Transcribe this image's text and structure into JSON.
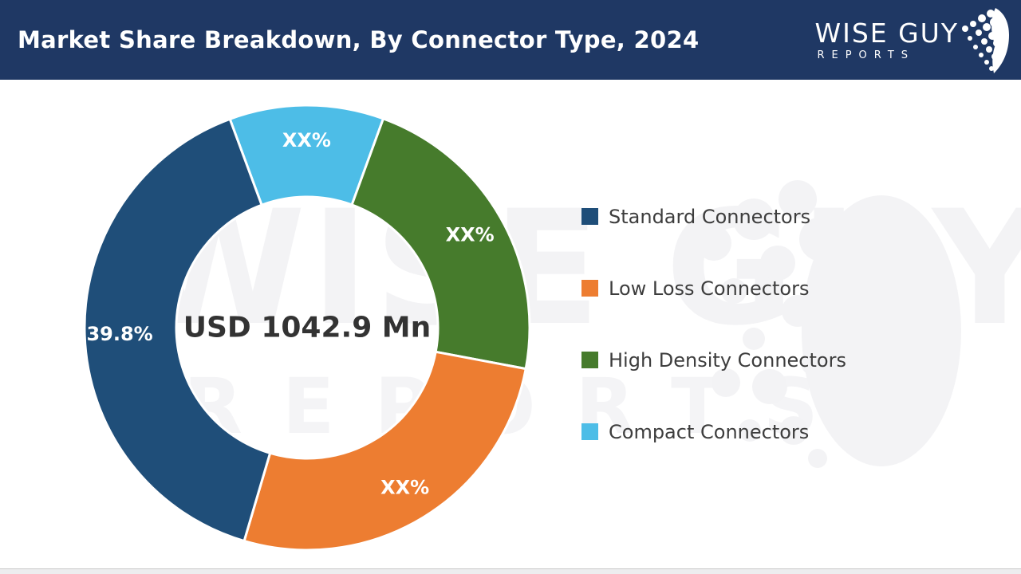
{
  "header": {
    "title": "Market Share Breakdown, By Connector Type, 2024",
    "bg_color": "#1F3864"
  },
  "logo": {
    "line1": "WISE GUY",
    "line2": "REPORTS"
  },
  "watermark": {
    "line1": "WISE GUY",
    "line2": "REPORTS"
  },
  "chart_data": {
    "type": "donut",
    "title": "Market Share Breakdown, By Connector Type, 2024",
    "center_label": "USD 1042.9 Mn",
    "start_angle_deg": -20.3,
    "direction": "clockwise",
    "legend_position": "right",
    "segments": [
      {
        "name": "Compact Connectors",
        "value_pct": 11.2,
        "label": "XX%",
        "color": "#4DBDE7"
      },
      {
        "name": "High Density Connectors",
        "value_pct": 22.4,
        "label": "XX%",
        "color": "#467B2C"
      },
      {
        "name": "Low Loss Connectors",
        "value_pct": 26.6,
        "label": "XX%",
        "color": "#ED7D31"
      },
      {
        "name": "Standard Connectors",
        "value_pct": 39.8,
        "label": "39.8%",
        "color": "#1F4E79"
      }
    ]
  },
  "legend": {
    "items": [
      {
        "label": "Standard Connectors",
        "color": "#1F4E79"
      },
      {
        "label": "Low Loss Connectors",
        "color": "#ED7D31"
      },
      {
        "label": "High Density Connectors",
        "color": "#467B2C"
      },
      {
        "label": "Compact Connectors",
        "color": "#4DBDE7"
      }
    ]
  }
}
